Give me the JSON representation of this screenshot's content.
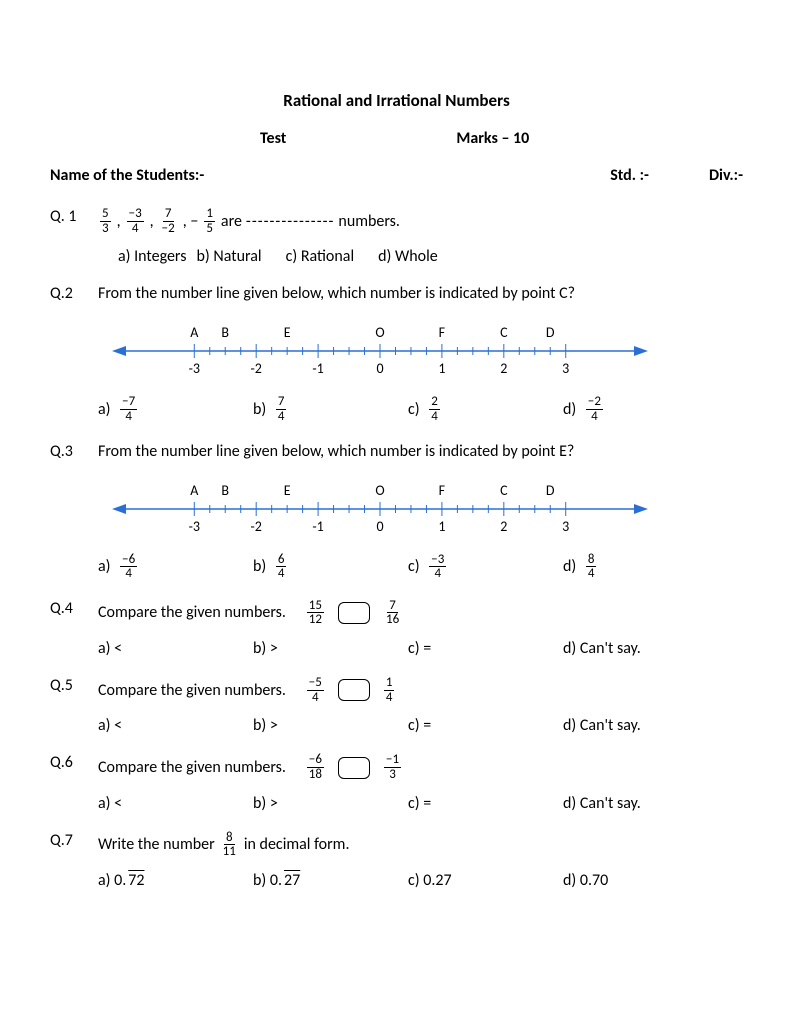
{
  "title": "Rational and Irrational Numbers",
  "subhead_left": "Test",
  "subhead_right": "Marks – 10",
  "info": {
    "name": "Name of the Students:-",
    "std": "Std. :-",
    "div": "Div.:-"
  },
  "q1": {
    "num": "Q. 1",
    "f1": {
      "n": "5",
      "d": "3"
    },
    "f2": {
      "n": "−3",
      "d": "4"
    },
    "f3": {
      "n": "7",
      "d": "−2"
    },
    "f4": {
      "n": "1",
      "d": "5"
    },
    "text_mid": "are",
    "dashes": "---------------",
    "text_end": "numbers.",
    "opts": [
      "a)  Integers",
      "b) Natural",
      "c) Rational",
      "d) Whole"
    ]
  },
  "q2": {
    "num": "Q.2",
    "text": "From the number line given below, which number is indicated by point C?",
    "nl": {
      "points": [
        {
          "label": "A",
          "pos": -3
        },
        {
          "label": "B",
          "pos": -2.5
        },
        {
          "label": "E",
          "pos": -1.5
        },
        {
          "label": "O",
          "pos": 0
        },
        {
          "label": "F",
          "pos": 1
        },
        {
          "label": "C",
          "pos": 2
        },
        {
          "label": "D",
          "pos": 2.75
        }
      ],
      "ticks": [
        -3,
        -2,
        -1,
        0,
        1,
        2,
        3
      ],
      "range": [
        -4.2,
        4.2
      ],
      "arrow_color": "#2a6fd6"
    },
    "opts": [
      {
        "l": "a)",
        "n": "−7",
        "d": "4"
      },
      {
        "l": "b)",
        "n": "7",
        "d": "4"
      },
      {
        "l": "c)",
        "n": "2",
        "d": "4"
      },
      {
        "l": "d)",
        "n": "−2",
        "d": "4"
      }
    ]
  },
  "q3": {
    "num": "Q.3",
    "text": "From the number line given below, which number is indicated by point E?",
    "opts": [
      {
        "l": "a)",
        "n": "−6",
        "d": "4"
      },
      {
        "l": "b)",
        "n": "6",
        "d": "4"
      },
      {
        "l": "c)",
        "n": "−3",
        "d": "4"
      },
      {
        "l": "d)",
        "n": "8",
        "d": "4"
      }
    ]
  },
  "q4": {
    "num": "Q.4",
    "text": "Compare the given numbers.",
    "f1": {
      "n": "15",
      "d": "12"
    },
    "f2": {
      "n": "7",
      "d": "16"
    },
    "opts": [
      "a) <",
      "b) >",
      "c) =",
      "d) Can't say."
    ]
  },
  "q5": {
    "num": "Q.5",
    "text": "Compare the given numbers.",
    "f1": {
      "n": "−5",
      "d": "4"
    },
    "f2": {
      "n": "1",
      "d": "4"
    },
    "opts": [
      "a) <",
      "b) >",
      "c) =",
      "d) Can't say."
    ]
  },
  "q6": {
    "num": "Q.6",
    "text": "Compare the given numbers.",
    "f1": {
      "n": "−6",
      "d": "18"
    },
    "f2": {
      "n": "−1",
      "d": "3"
    },
    "opts": [
      "a) <",
      "b) >",
      "c) =",
      "d) Can't say."
    ]
  },
  "q7": {
    "num": "Q.7",
    "text_a": "Write the number",
    "f": {
      "n": "8",
      "d": "11"
    },
    "text_b": "in decimal form.",
    "opts": [
      {
        "pre": "a) 0.",
        "bar": "72"
      },
      {
        "pre": "b) 0.",
        "bar": "27"
      },
      {
        "pre": "c) 0.27",
        "bar": ""
      },
      {
        "pre": "d) 0.70",
        "bar": ""
      }
    ]
  }
}
